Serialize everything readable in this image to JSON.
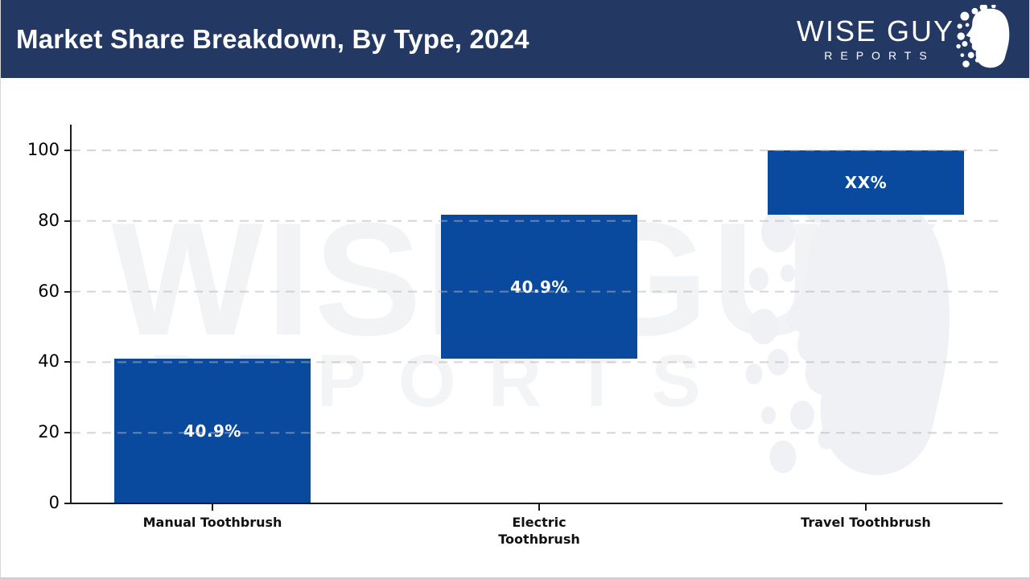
{
  "header": {
    "title": "Market Share Breakdown, By Type, 2024",
    "logo": {
      "line1": "WISE GUY",
      "line2": "REPORTS"
    }
  },
  "watermark": {
    "line1": "WISE GUY",
    "line2": "REPORTS"
  },
  "chart_data": {
    "type": "bar",
    "variant": "floating-stacked-breakdown",
    "title": "Market Share Breakdown, By Type, 2024",
    "categories": [
      "Manual Toothbrush",
      "Electric Toothbrush",
      "Travel Toothbrush"
    ],
    "category_lines": [
      [
        "Manual Toothbrush"
      ],
      [
        "Electric",
        "Toothbrush"
      ],
      [
        "Travel Toothbrush"
      ]
    ],
    "bars": [
      {
        "category": "Manual Toothbrush",
        "start": 0,
        "end": 40.9,
        "label": "40.9%"
      },
      {
        "category": "Electric Toothbrush",
        "start": 40.9,
        "end": 81.8,
        "label": "40.9%"
      },
      {
        "category": "Travel Toothbrush",
        "start": 81.8,
        "end": 100,
        "label": "XX%"
      }
    ],
    "yticks": [
      0,
      20,
      40,
      60,
      80,
      100
    ],
    "ylim": [
      0,
      107
    ],
    "xlabel": "",
    "ylabel": "",
    "grid": "horizontal-dashed",
    "legend": "none",
    "bar_color": "#0a4a9e",
    "gridline_color": "#d9dadd",
    "axis_color": "#1a1a1a",
    "header_color": "#233963"
  }
}
